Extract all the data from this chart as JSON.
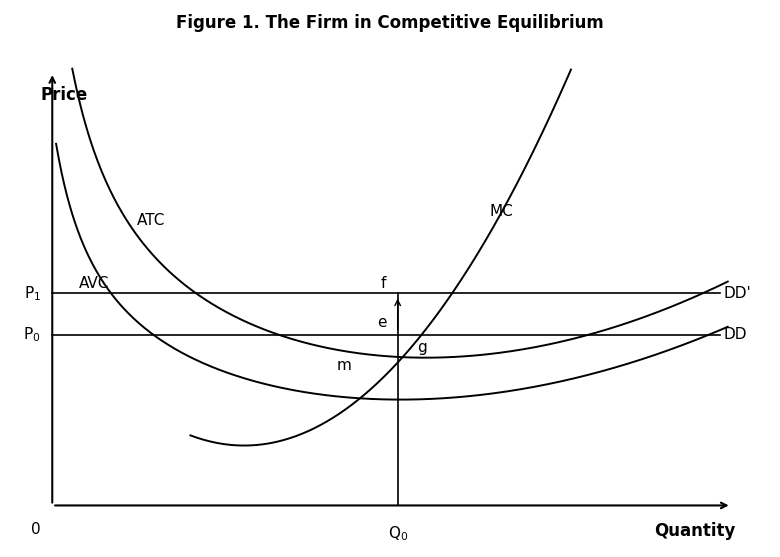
{
  "title": "Figure 1. The Firm in Competitive Equilibrium",
  "xlabel": "Quantity",
  "ylabel": "Price",
  "background_color": "#ffffff",
  "title_fontsize": 12,
  "Q0_x": 5.5,
  "P0_y": 4.2,
  "P1_y": 5.1,
  "dd_label": "DD",
  "dd_prime_label": "DD'",
  "atc_label": "ATC",
  "avc_label": "AVC",
  "mc_label": "MC",
  "xlim_data": [
    0,
    10
  ],
  "ylim_data": [
    0,
    10
  ]
}
